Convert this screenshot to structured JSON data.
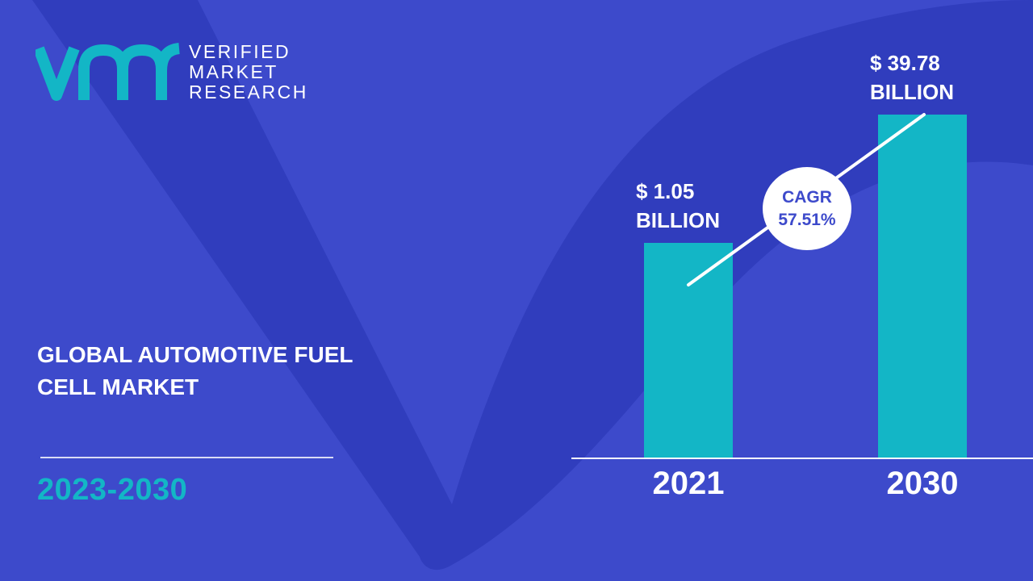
{
  "brand": {
    "lines": [
      "VERIFIED",
      "MARKET",
      "RESEARCH"
    ],
    "colors": {
      "mark": "#13b6c6",
      "text": "#ffffff"
    }
  },
  "report": {
    "title": "GLOBAL AUTOMOTIVE FUEL CELL MARKET",
    "period": "2023-2030"
  },
  "colors": {
    "background": "#3d4acb",
    "background_shape": "#2c3ab8",
    "bar": "#13b6c6",
    "accent": "#13b6c6"
  },
  "chart_data": {
    "type": "bar",
    "categories": [
      "2021",
      "2030"
    ],
    "values": [
      1.05,
      39.78
    ],
    "value_labels": [
      [
        "$ 1.05",
        "BILLION"
      ],
      [
        "$ 39.78",
        "BILLION"
      ]
    ],
    "title": "",
    "xlabel": "",
    "ylabel": "",
    "unit": "$ Billion",
    "annotation": {
      "label": "CAGR",
      "value": "57.51%"
    }
  }
}
